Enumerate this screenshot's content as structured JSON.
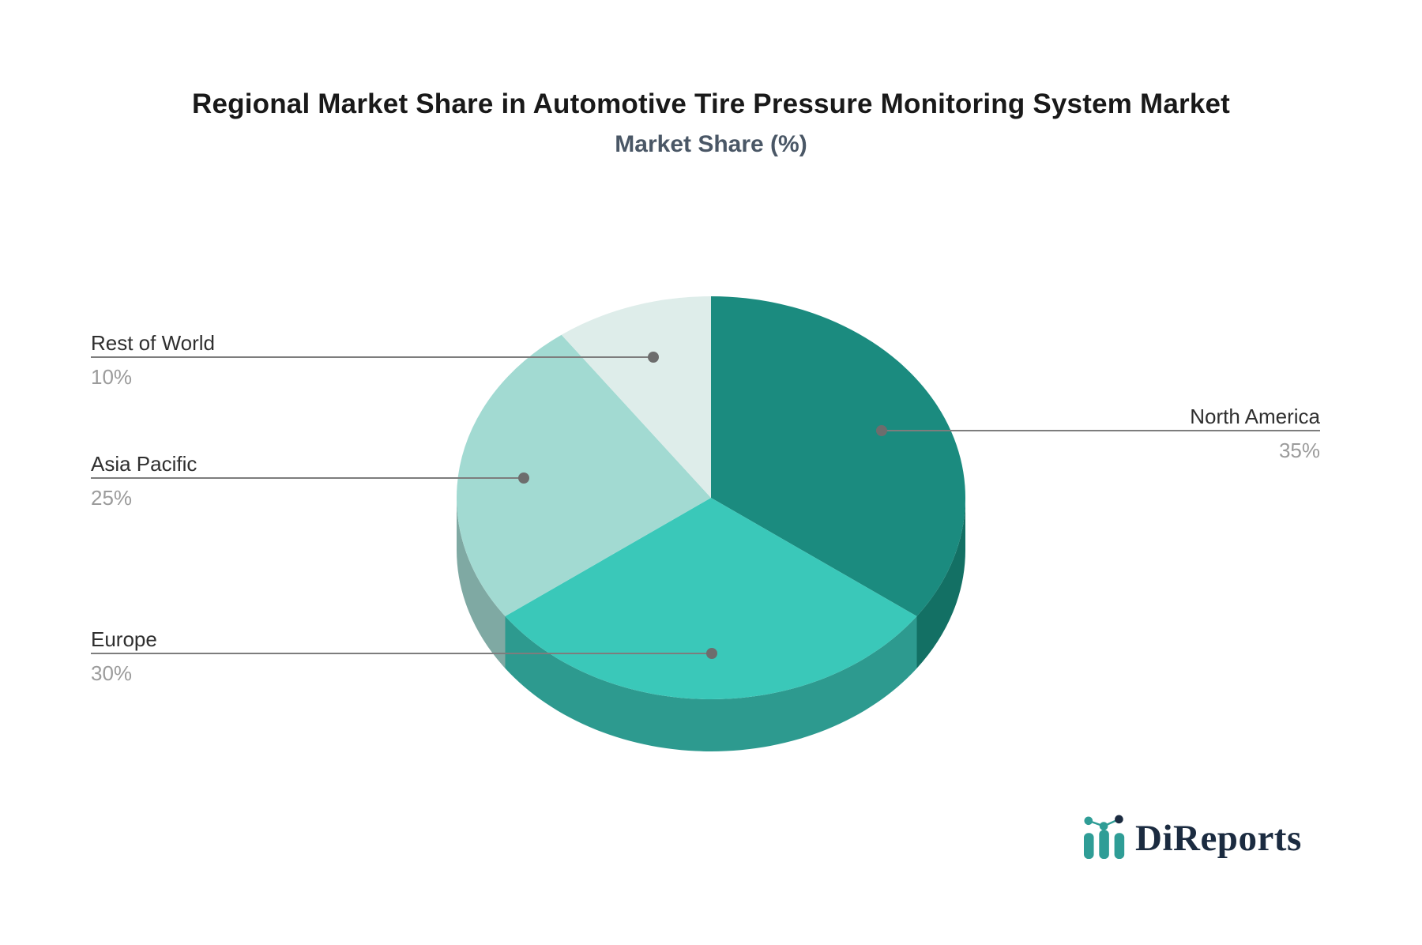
{
  "title": "Regional Market Share in Automotive Tire Pressure Monitoring System Market",
  "subtitle": "Market Share (%)",
  "logo": {
    "text": "DiReports",
    "accent_teal": "#2F9D96",
    "navy": "#1B2B40"
  },
  "colors": {
    "background": "#FFFFFF",
    "title_text": "#191919",
    "subtitle_text": "#4A5766",
    "callout_label_text": "#2F2F2F",
    "callout_value_text": "#9B9B9B",
    "leader_line": "#7D7D7D",
    "leader_dot": "#6D6D6D"
  },
  "chart_data": {
    "type": "pie",
    "style": "3d",
    "title": "Regional Market Share in Automotive Tire Pressure Monitoring System Market",
    "subtitle": "Market Share (%)",
    "categories": [
      "North America",
      "Europe",
      "Asia Pacific",
      "Rest of World"
    ],
    "values": [
      35,
      30,
      25,
      10
    ],
    "labels": [
      "35%",
      "30%",
      "25%",
      "10%"
    ],
    "colors": [
      "#1B8B7F",
      "#3AC8B9",
      "#A2DAD2",
      "#DEEDEA"
    ],
    "side_colors": [
      "#137064",
      "#2D9A8F",
      "#7FA9A3",
      "#C4DCD7"
    ],
    "start_angle_deg": 0,
    "direction": "clockwise",
    "legend_position": "callout-lines",
    "grid": false
  }
}
